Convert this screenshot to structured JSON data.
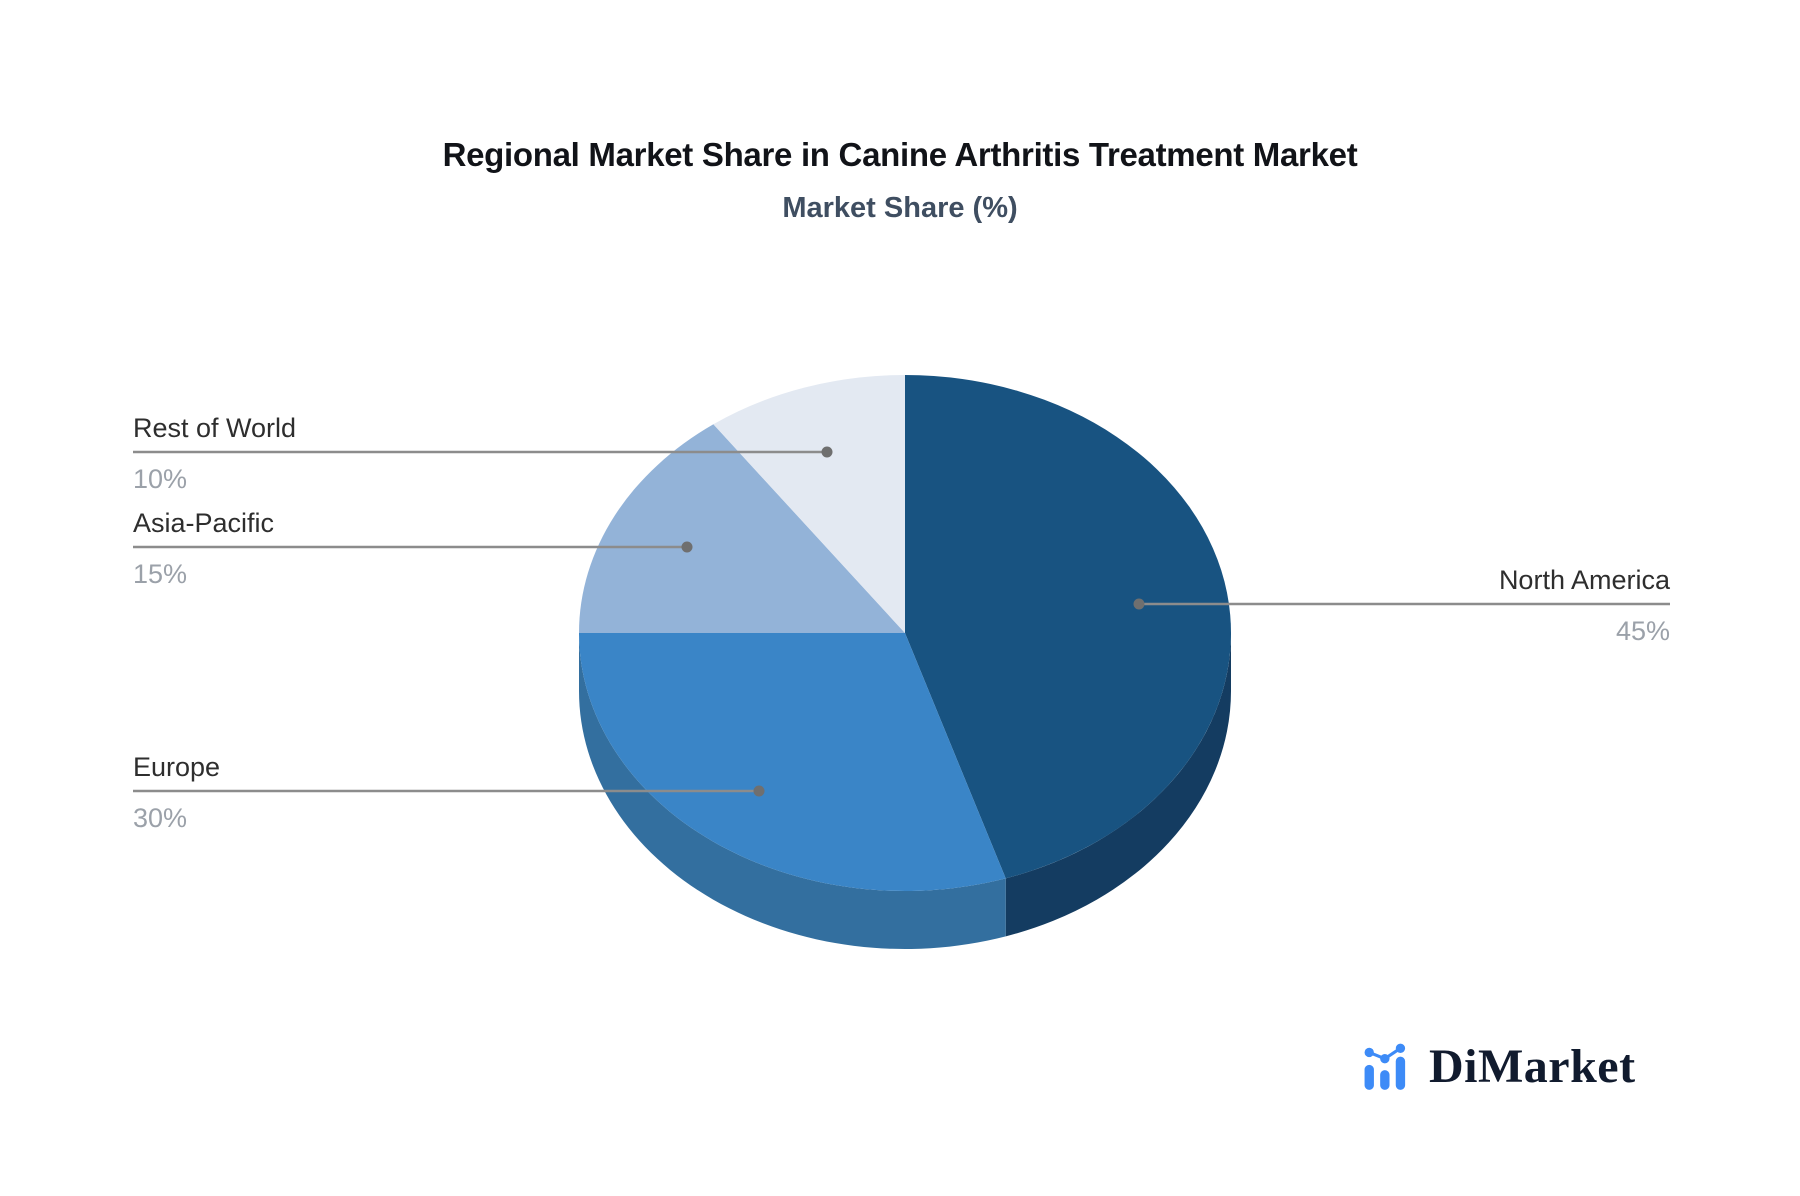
{
  "chart_data": {
    "type": "pie",
    "style": "pie3d",
    "title": "Regional Market Share in Canine Arthritis Treatment Market",
    "subtitle": "Market Share (%)",
    "unit": "%",
    "start_angle_deg": 0,
    "direction": "clockwise",
    "legend": "none",
    "slices": [
      {
        "label": "North America",
        "value": 45,
        "value_label": "45%",
        "color": "#185381",
        "side_color": "#143c61"
      },
      {
        "label": "Europe",
        "value": 30,
        "value_label": "30%",
        "color": "#3a85c7",
        "side_color": "#336f9f"
      },
      {
        "label": "Asia-Pacific",
        "value": 15,
        "value_label": "15%",
        "color": "#93b3d8",
        "side_color": "#7e9dc2"
      },
      {
        "label": "Rest of World",
        "value": 10,
        "value_label": "10%",
        "color": "#e3e9f2",
        "side_color": "#c6cfdd"
      }
    ]
  },
  "logo": {
    "text": "DiMarket",
    "icon": "bar-chart-icon",
    "icon_color": "#3d8bf7",
    "text_color": "#111b2e"
  },
  "colors": {
    "background": "#ffffff",
    "title": "#111318",
    "subtitle": "#3f4e61",
    "label_text": "#2e2e2e",
    "value_text": "#9ba1a9",
    "leader_line": "#8c8c8c",
    "leader_dot": "#6f6f6f"
  }
}
